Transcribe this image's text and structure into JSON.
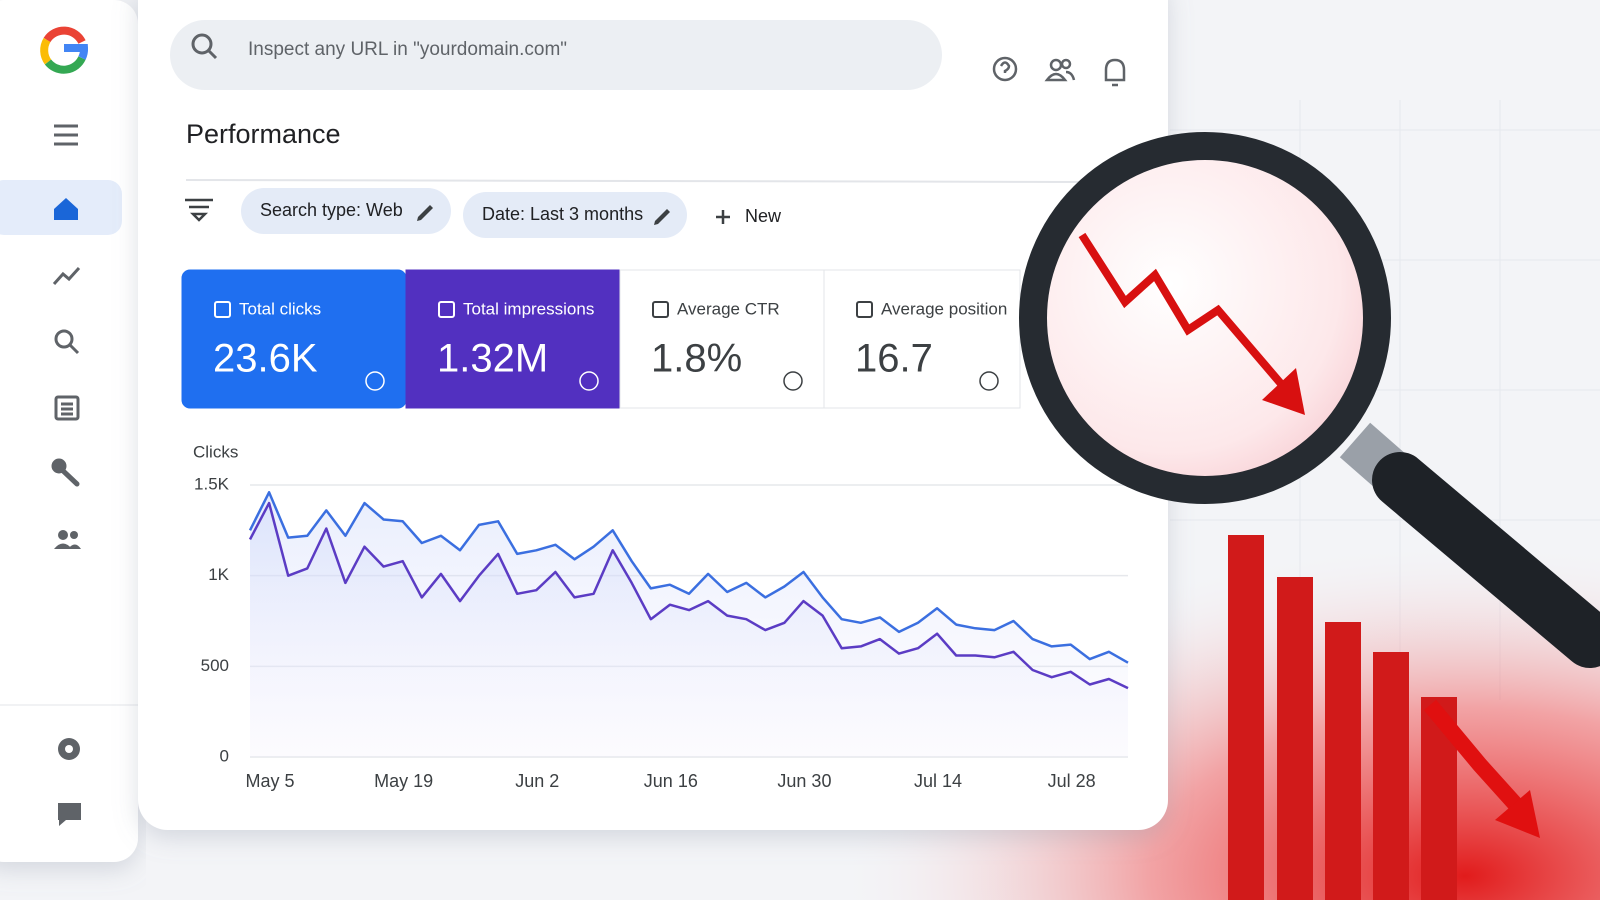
{
  "search": {
    "placeholder": "Inspect any URL in \"yourdomain.com\""
  },
  "header": {
    "title": "Performance"
  },
  "filters": [
    "Search type: Web",
    "Date: Last 3 months",
    "New"
  ],
  "metrics": [
    {
      "label": "Total clicks",
      "value": "23.6K"
    },
    {
      "label": "Total impressions",
      "value": "1.32M"
    },
    {
      "label": "Average CTR",
      "value": "1.8%"
    },
    {
      "label": "Average position",
      "value": "16.7"
    }
  ],
  "chart_data": {
    "type": "line",
    "y_label": "Clicks",
    "categories": [
      "May 5",
      null,
      null,
      null,
      null,
      null,
      null,
      "May 19",
      null,
      null,
      null,
      null,
      null,
      null,
      "Jun 2",
      null,
      null,
      null,
      null,
      null,
      null,
      "Jun 16",
      null,
      null,
      null,
      null,
      null,
      null,
      "Jun 30",
      null,
      null,
      null,
      null,
      null,
      null,
      "Jul 14",
      null,
      null,
      null,
      null,
      null,
      null,
      "Jul 28",
      null,
      null,
      null,
      null
    ],
    "series": [
      {
        "color": "#3b6fe0",
        "values": [
          1250,
          1460,
          1210,
          1220,
          1360,
          1220,
          1400,
          1310,
          1300,
          1180,
          1220,
          1140,
          1280,
          1300,
          1120,
          1140,
          1170,
          1090,
          1160,
          1250,
          1080,
          930,
          950,
          900,
          1010,
          910,
          960,
          880,
          940,
          1020,
          880,
          760,
          740,
          770,
          690,
          740,
          820,
          730,
          710,
          700,
          750,
          650,
          610,
          620,
          540,
          580,
          520
        ]
      },
      {
        "color": "#5b3cc4",
        "values": [
          1200,
          1400,
          1000,
          1040,
          1260,
          960,
          1160,
          1050,
          1080,
          880,
          1010,
          860,
          1000,
          1120,
          900,
          920,
          1020,
          880,
          900,
          1140,
          960,
          760,
          840,
          810,
          860,
          780,
          760,
          700,
          740,
          860,
          780,
          600,
          610,
          650,
          570,
          600,
          680,
          560,
          560,
          550,
          580,
          480,
          440,
          470,
          400,
          430,
          380
        ]
      }
    ],
    "ylim": [
      0,
      1500
    ],
    "yticks": [
      0,
      500,
      {
        "value": 1000,
        "label": "1K"
      },
      {
        "value": 1500,
        "label": "1.5K"
      }
    ],
    "grid": true
  }
}
